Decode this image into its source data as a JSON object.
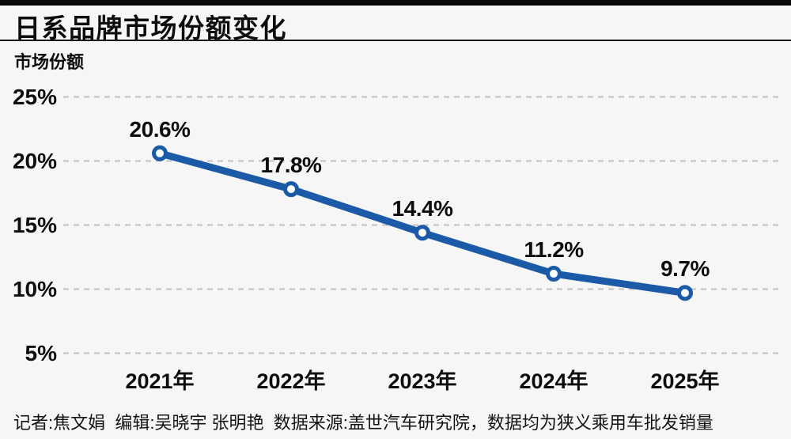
{
  "header": {
    "title": "日系品牌市场份额变化"
  },
  "chart_data": {
    "type": "line",
    "title": "日系品牌市场份额变化",
    "ylabel": "市场份额",
    "xlabel": "",
    "categories": [
      "2021年",
      "2022年",
      "2023年",
      "2024年",
      "2025年"
    ],
    "series": [
      {
        "name": "日系品牌市场份额",
        "values": [
          20.6,
          17.8,
          14.4,
          11.2,
          9.7
        ]
      }
    ],
    "point_labels": [
      "20.6%",
      "17.8%",
      "14.4%",
      "11.2%",
      "9.7%"
    ],
    "yticks": {
      "values": [
        25,
        20,
        15,
        10,
        5
      ],
      "labels": [
        "25%",
        "20%",
        "15%",
        "10%",
        "5%"
      ]
    },
    "ylim": [
      5,
      27
    ],
    "grid": "horizontal-dashed",
    "legend": "none",
    "line_color": "#1b5aa6",
    "marker": "open-circle",
    "grid_color": "#c2c2c2"
  },
  "footer": {
    "credits": "记者:焦文娟  编辑:吴晓宇 张明艳  数据来源:盖世汽车研究院，数据均为狭义乘用车批发销量"
  }
}
